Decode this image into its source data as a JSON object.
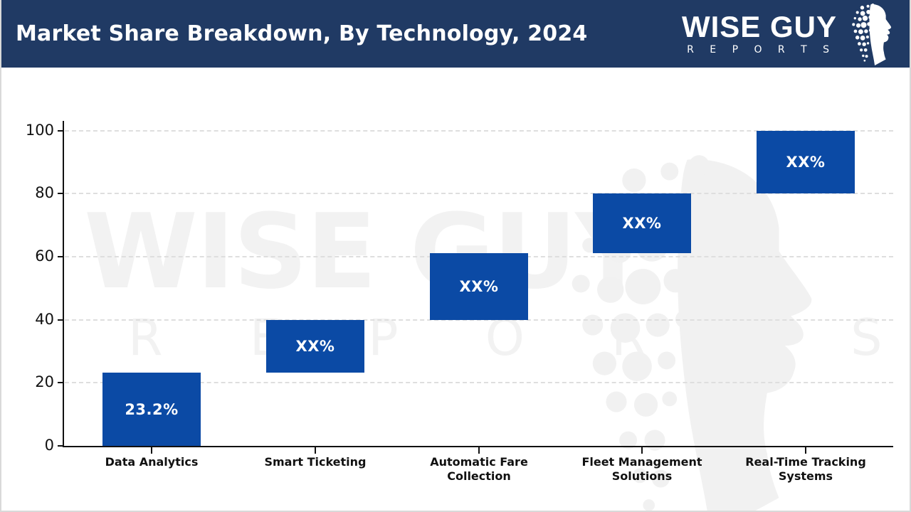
{
  "header": {
    "title": "Market Share Breakdown, By Technology, 2024",
    "logo": {
      "name": "WISE GUY",
      "subname": "R E P O R T S"
    }
  },
  "watermark": {
    "line1": "WISE GUY",
    "line2": "R E P O R T S"
  },
  "colors": {
    "header_bg": "#203a64",
    "bar_fill": "#0b4aa5",
    "grid": "#dedede",
    "axis": "#111111",
    "watermark": "#f2f2f2",
    "bar_label_text": "#ffffff"
  },
  "chart_data": {
    "type": "bar",
    "subtype": "waterfall",
    "title": "Market Share Breakdown, By Technology, 2024",
    "categories": [
      "Data Analytics",
      "Smart Ticketing",
      "Automatic Fare Collection",
      "Fleet Management Solutions",
      "Real-Time Tracking Systems"
    ],
    "segments": [
      {
        "category": "Data Analytics",
        "start": 0,
        "end": 23.2,
        "label": "23.2%"
      },
      {
        "category": "Smart Ticketing",
        "start": 23.2,
        "end": 40,
        "label": "XX%"
      },
      {
        "category": "Automatic Fare Collection",
        "start": 40,
        "end": 61,
        "label": "XX%"
      },
      {
        "category": "Fleet Management Solutions",
        "start": 61,
        "end": 80,
        "label": "XX%"
      },
      {
        "category": "Real-Time Tracking Systems",
        "start": 80,
        "end": 100,
        "label": "XX%"
      }
    ],
    "yticks": [
      0,
      20,
      40,
      60,
      80,
      100
    ],
    "ylim": [
      0,
      100
    ],
    "xlabel": "",
    "ylabel": "",
    "grid": "dashed-horizontal",
    "legend": "none"
  }
}
